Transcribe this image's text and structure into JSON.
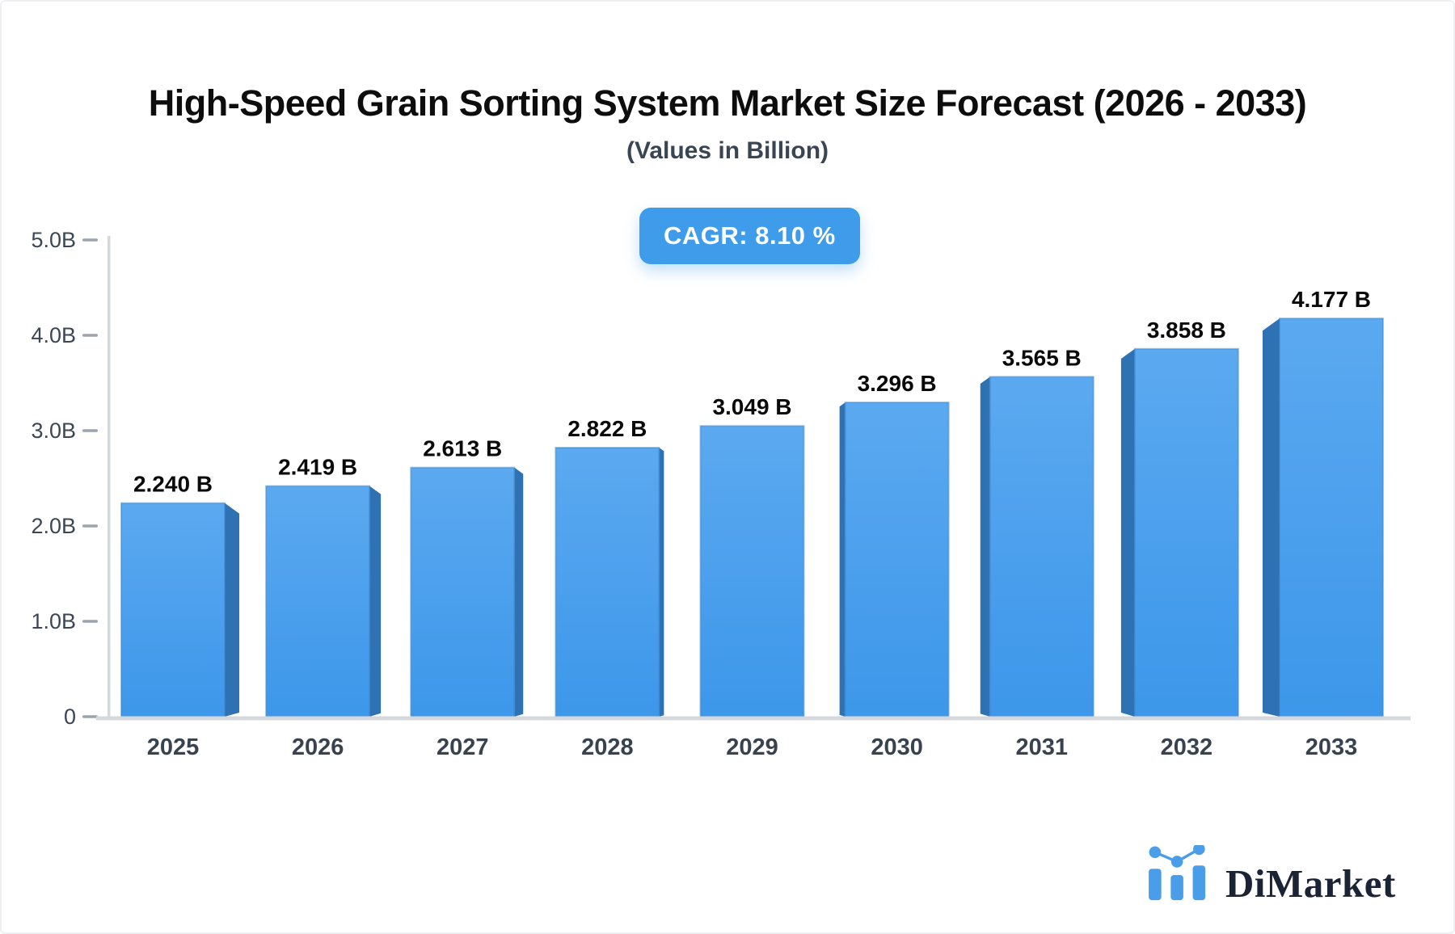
{
  "title": "High-Speed Grain Sorting System Market Size Forecast (2026 - 2033)",
  "subtitle": "(Values in Billion)",
  "cagr_badge": "CAGR: 8.10 %",
  "brand": {
    "name": "DiMarket"
  },
  "chart_data": {
    "type": "bar",
    "title": "High-Speed Grain Sorting System Market Size Forecast (2026 - 2033)",
    "subtitle": "(Values in Billion)",
    "categories": [
      "2025",
      "2026",
      "2027",
      "2028",
      "2029",
      "2030",
      "2031",
      "2032",
      "2033"
    ],
    "values": [
      2.24,
      2.419,
      2.613,
      2.822,
      3.049,
      3.296,
      3.565,
      3.858,
      4.177
    ],
    "value_labels": [
      "2.240 B",
      "2.419 B",
      "2.613 B",
      "2.822 B",
      "3.049 B",
      "3.296 B",
      "3.565 B",
      "3.858 B",
      "4.177 B"
    ],
    "xlabel": "",
    "ylabel": "",
    "ylim": [
      0,
      5
    ],
    "ytick_values": [
      0,
      1,
      2,
      3,
      4,
      5
    ],
    "ytick_labels": [
      "0",
      "1.0B",
      "2.0B",
      "3.0B",
      "4.0B",
      "5.0B"
    ],
    "grid": false,
    "legend": false,
    "style": "3d-perspective-bars"
  },
  "colors": {
    "background": "#FFFFFF",
    "bar_face_top": "#5BA9F0",
    "bar_face_bottom": "#3D97EA",
    "bar_edge": "#3E85C8",
    "bar_side": "#2E72B4",
    "badge_bg": "#3E9CEA",
    "badge_text": "#FFFFFF",
    "axis_line": "#D5D9DE",
    "tick_mark": "#9BA3AE",
    "ytick_text": "#3C4654",
    "xtick_text": "#39434F",
    "value_text": "#0A0A0A",
    "title_text": "#0D0D0D",
    "subtitle_text": "#3A4554",
    "brand_text": "#1B2435",
    "brand_icon": "#4A9EE9"
  }
}
